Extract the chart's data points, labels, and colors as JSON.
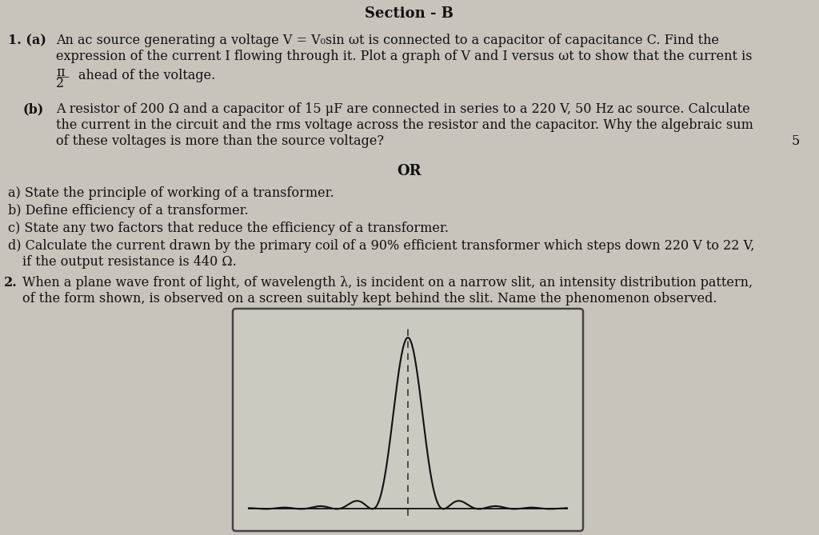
{
  "bg_color": "#c8c4bc",
  "page_color": "#d8d5cc",
  "line_color": "#111111",
  "dashed_color": "#333333",
  "box_bg": "#ccc9c0",
  "text_color": "#111111",
  "title": "Section - B",
  "q1a_line1": "An ac source generating a voltage V = V₀sin ωt is connected to a capacitor of capacitance C. Find the",
  "q1a_line2": "expression of the current I flowing through it. Plot a graph of V and I versus ωt to show that the current is",
  "q1b_line1": "A resistor of 200 Ω and a capacitor of 15 μF are connected in series to a 220 V, 50 Hz ac source. Calculate",
  "q1b_line2": "the current in the circuit and the rms voltage across the resistor and the capacitor. Why the algebraic sum",
  "q1b_line3": "of these voltages is more than the source voltage?",
  "or_a": "a) State the principle of working of a transformer.",
  "or_b": "b) Define efficiency of a transformer.",
  "or_c": "c) State any two factors that reduce the efficiency of a transformer.",
  "or_d1": "d) Calculate the current drawn by the primary coil of a 90% efficient transformer which steps down 220 V to 22 V,",
  "or_d2": "   if the output resistance is 440 Ω.",
  "q2_line1": "When a plane wave front of light, of wavelength λ, is incident on a narrow slit, an intensity distribution pattern,",
  "q2_line2": "of the form shown, is observed on a screen suitably kept behind the slit. Name the phenomenon observed."
}
